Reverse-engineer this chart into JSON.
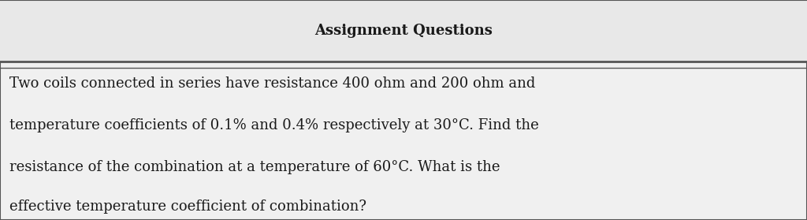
{
  "title": "Assignment Questions",
  "title_fontsize": 13,
  "body_text_line1": "Two coils connected in series have resistance 400 ohm and 200 ohm and",
  "body_text_line2": "temperature coefficients of 0.1% and 0.4% respectively at 30°C. Find the",
  "body_text_line3": "resistance of the combination at a temperature of 60°C. What is the",
  "body_text_line4": "effective temperature coefficient of combination?",
  "body_fontsize": 13,
  "background_color": "#f0f0f0",
  "header_bg_color": "#e8e8e8",
  "text_color": "#1a1a1a",
  "border_color": "#555555",
  "fig_width": 10.24,
  "fig_height": 2.79
}
